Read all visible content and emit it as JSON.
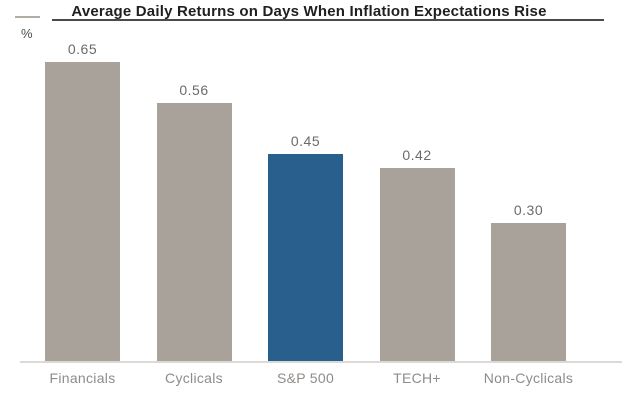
{
  "header": {
    "title": "Average Daily Returns on Days When Inflation Expectations Rise",
    "unit_label": "%"
  },
  "colors": {
    "background": "#ffffff",
    "bar_default": "#a9a29b",
    "bar_highlight": "#295f8c",
    "title_text": "#1f1f1f",
    "value_label_text": "#6b6b6b",
    "category_label_text": "#8f8b88",
    "axis_line": "#dcd9d6"
  },
  "chart_data": {
    "type": "bar",
    "title": "Average Daily Returns on Days When Inflation Expectations Rise",
    "xlabel": "",
    "ylabel": "%",
    "categories": [
      "Financials",
      "Cyclicals",
      "S&P 500",
      "TECH+",
      "Non-Cyclicals"
    ],
    "values": [
      0.65,
      0.56,
      0.45,
      0.42,
      0.3
    ],
    "value_labels": [
      "0.65",
      "0.56",
      "0.45",
      "0.42",
      "0.30"
    ],
    "highlighted_category": "S&P 500",
    "highlight_index": 2,
    "ylim": [
      0,
      0.75
    ],
    "grid": false,
    "legend": false,
    "value_labels_shown": true
  }
}
